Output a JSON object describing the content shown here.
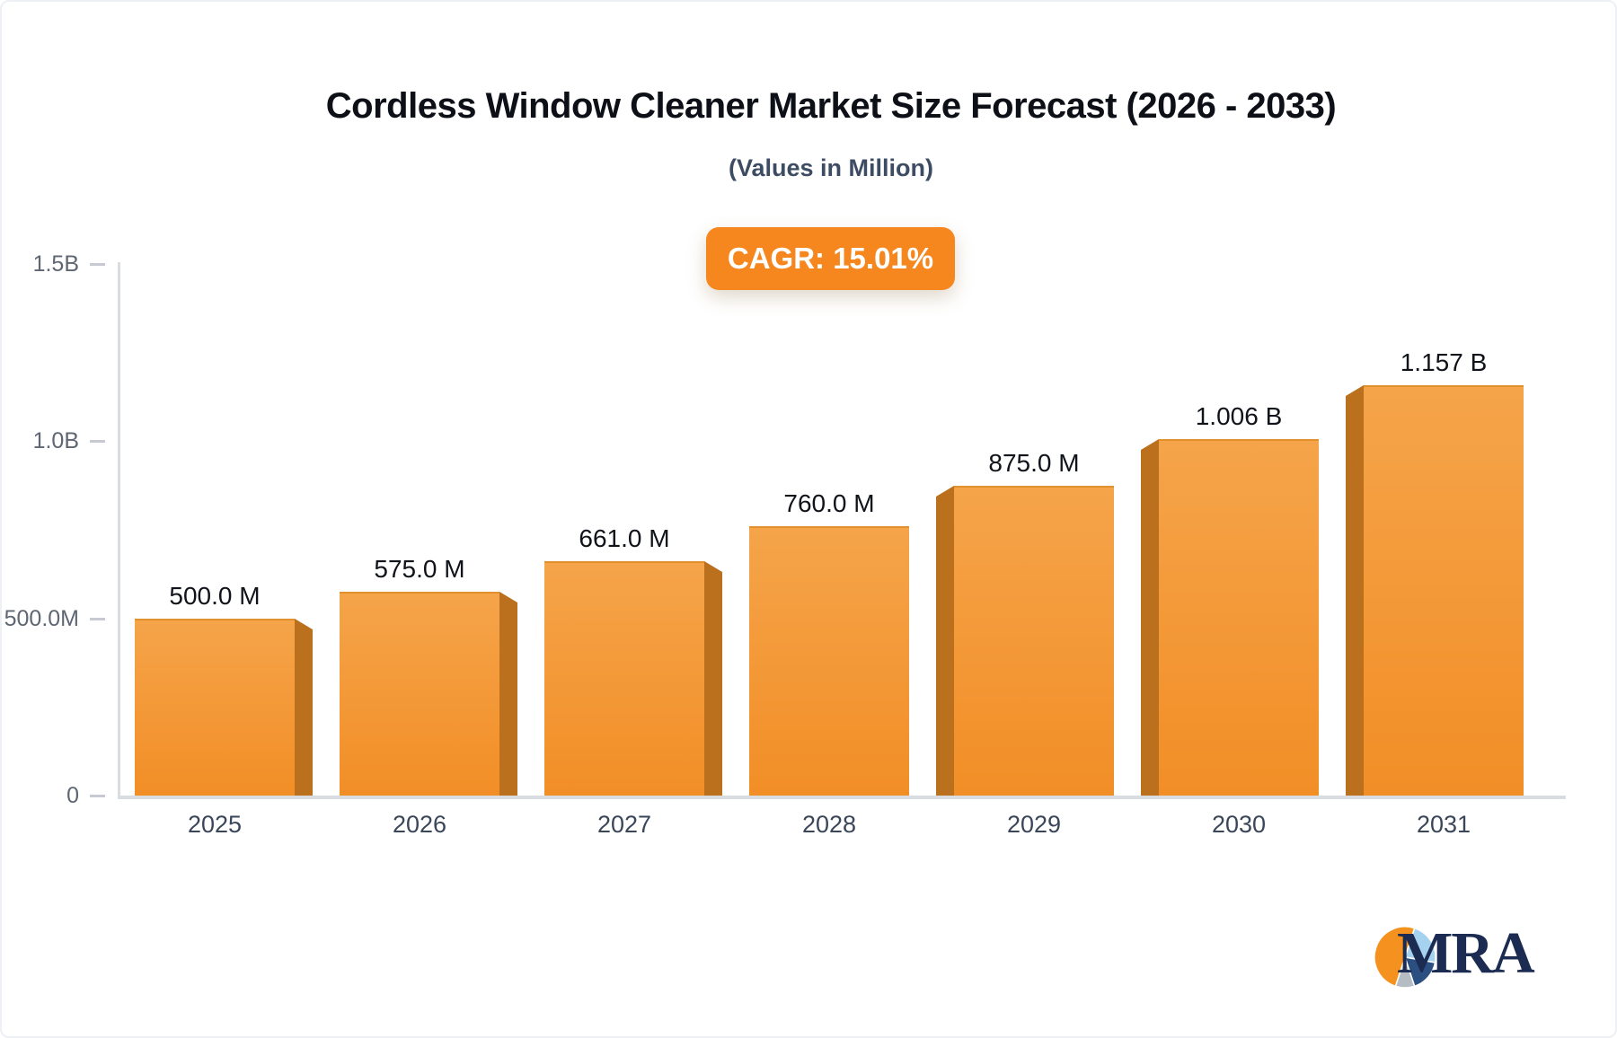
{
  "page": {
    "background": "#ffffff",
    "card_border_color": "#edf0f4"
  },
  "header": {
    "title": "Cordless Window Cleaner Market Size Forecast (2026 - 2033)",
    "subtitle": "(Values in Million)",
    "cagr_badge": "CAGR: 15.01%",
    "badge_color": "#f6871f"
  },
  "chart_data": {
    "type": "bar",
    "title": "Cordless Window Cleaner Market Size Forecast (2026 - 2033)",
    "subtitle": "(Values in Million)",
    "annotation": "CAGR: 15.01%",
    "categories": [
      "2025",
      "2026",
      "2027",
      "2028",
      "2029",
      "2030",
      "2031"
    ],
    "values_million": [
      500,
      575,
      661,
      760,
      875,
      1006,
      1157
    ],
    "value_labels": [
      "500.0 M",
      "575.0 M",
      "661.0 M",
      "760.0 M",
      "875.0 M",
      "1.006 B",
      "1.157 B"
    ],
    "yticks": [
      {
        "label": "1.5B",
        "value": 1500
      },
      {
        "label": "1.0B",
        "value": 1000
      },
      {
        "label": "500.0M",
        "value": 500
      },
      {
        "label": "0",
        "value": 0
      }
    ],
    "ylim": [
      0,
      1500
    ],
    "xlabel": "",
    "ylabel": "",
    "grid": false,
    "legend": false,
    "bar_face_color_top": "#f5a44a",
    "bar_face_color_bottom": "#f28e26",
    "bar_side_color": "#ba701d"
  },
  "brand": {
    "logo_text": "MRA",
    "logo_text_color": "#1b2b52",
    "pie_colors": {
      "orange": "#f5921f",
      "light_blue": "#a5d2ee",
      "navy": "#2c4f82",
      "gray": "#b6bcc4"
    }
  }
}
